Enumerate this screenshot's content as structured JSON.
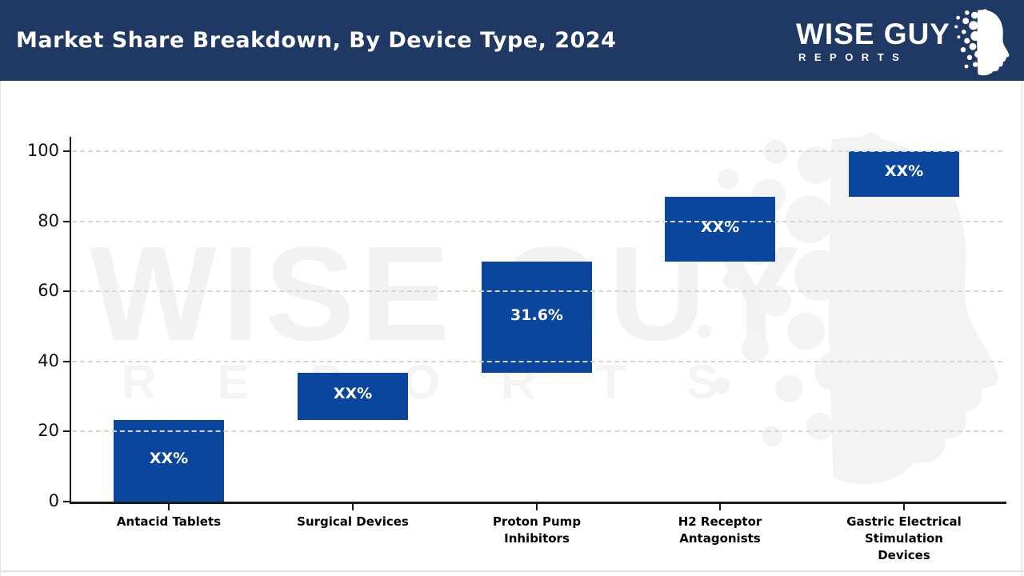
{
  "header": {
    "title": "Market Share Breakdown, By Device Type, 2024",
    "bg_color": "#1f3864",
    "logo": {
      "line1": "WISE GUY",
      "line2": "REPORTS"
    }
  },
  "watermark": {
    "line1": "WISE GUY",
    "line2": "REPORTS"
  },
  "chart_data": {
    "type": "bar",
    "variant": "floating-waterfall",
    "title": "Market Share Breakdown, By Device Type, 2024",
    "categories": [
      "Antacid Tablets",
      "Surgical Devices",
      "Proton Pump Inhibitors",
      "H2 Receptor Antagonists",
      "Gastric Electrical Stimulation Devices"
    ],
    "category_label_lines": [
      [
        "Antacid Tablets"
      ],
      [
        "Surgical Devices"
      ],
      [
        "Proton Pump",
        "Inhibitors"
      ],
      [
        "H2 Receptor",
        "Antagonists"
      ],
      [
        "Gastric Electrical",
        "Stimulation",
        "Devices"
      ]
    ],
    "series": [
      {
        "name": "Market share (%)",
        "segments": [
          {
            "category": "Antacid Tablets",
            "start": 0,
            "end": 23.4,
            "label": "XX%"
          },
          {
            "category": "Surgical Devices",
            "start": 23.4,
            "end": 36.8,
            "label": "XX%"
          },
          {
            "category": "Proton Pump Inhibitors",
            "start": 36.8,
            "end": 68.4,
            "label": "31.6%"
          },
          {
            "category": "H2 Receptor Antagonists",
            "start": 68.4,
            "end": 87.0,
            "label": "XX%"
          },
          {
            "category": "Gastric Electrical Stimulation Devices",
            "start": 87.0,
            "end": 100,
            "label": "XX%"
          }
        ]
      }
    ],
    "ylim": [
      0,
      105
    ],
    "yticks": [
      0,
      20,
      40,
      60,
      80,
      100
    ],
    "grid": "horizontal-dashed",
    "legend": "none",
    "bar_color": "#0a469d",
    "bar_label_color": "#ffffff",
    "axis_color": "#1a1a1a"
  }
}
